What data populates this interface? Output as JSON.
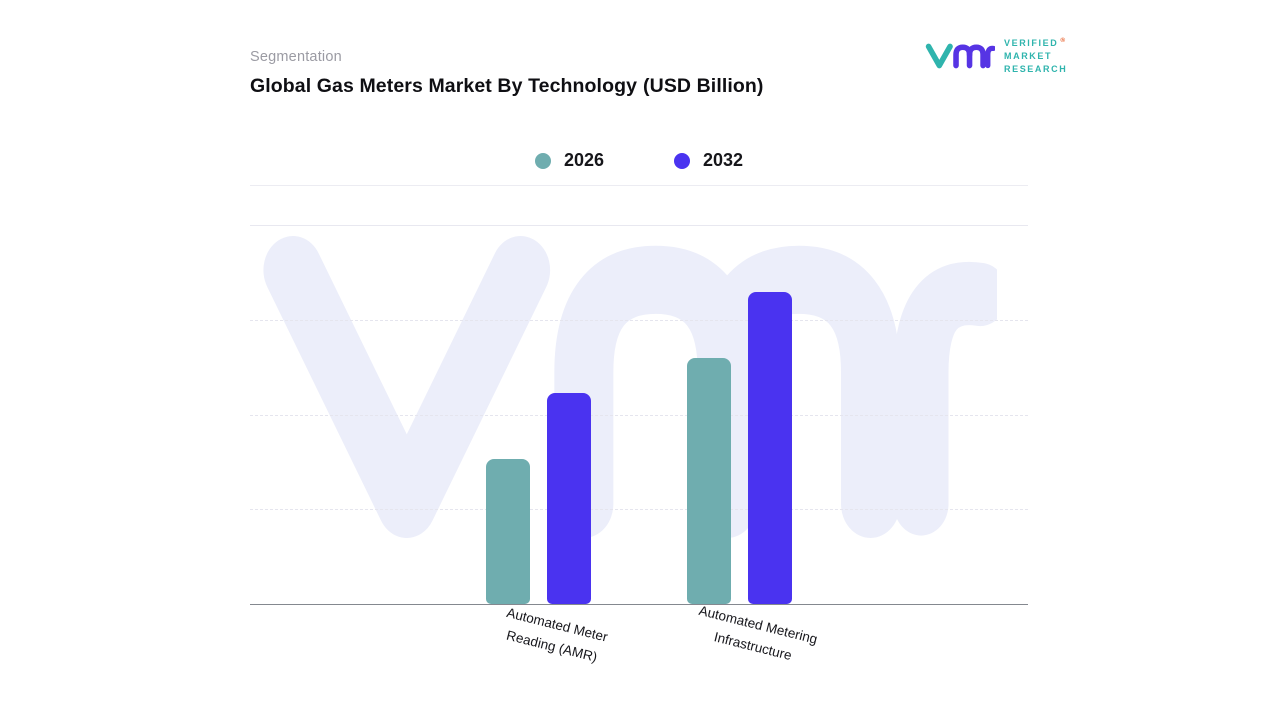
{
  "header": {
    "eyebrow": "Segmentation",
    "title_main": "Global Gas Meters Market By Technology",
    "title_unit": "(USD Billion)"
  },
  "logo": {
    "lines": [
      "VERIFIED",
      "MARKET",
      "RESEARCH"
    ],
    "reg": "®",
    "teal": "#2fb4ad",
    "purple": "#5634e4"
  },
  "chart_data": {
    "type": "bar",
    "title": "Global Gas Meters Market By Technology (USD Billion)",
    "unit": "USD Billion",
    "categories": [
      {
        "key": "amr",
        "label_lines": [
          "Automated Meter",
          "Reading (AMR)"
        ]
      },
      {
        "key": "ami",
        "label_lines": [
          "Automated Metering",
          "Infrastructure"
        ]
      }
    ],
    "series": [
      {
        "name": "2026",
        "color": "#6FADAF",
        "values": [
          4.6,
          7.8
        ]
      },
      {
        "name": "2032",
        "color": "#4A33F0",
        "values": [
          6.7,
          9.9
        ]
      }
    ],
    "ylim": [
      0,
      12
    ],
    "value_axis_labels": "none shown; values estimated from unlabeled quarter gridlines",
    "grid": "horizontal dashed at 25/50/75%",
    "legend_position": "top-center",
    "watermark_color": "#ECEEFA"
  }
}
